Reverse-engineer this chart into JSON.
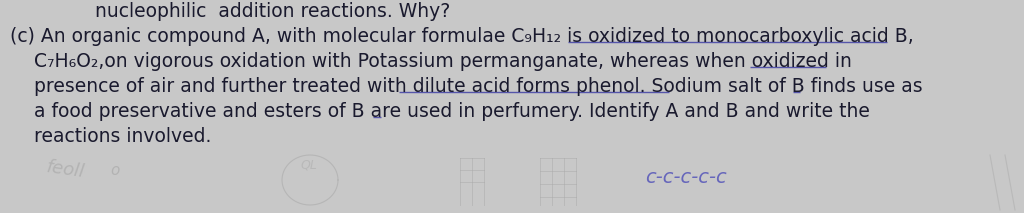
{
  "bg_color": "#c8c8c8",
  "text_color": "#1a1a2e",
  "underline_color": "#5555aa",
  "handwrite_color": "#6666bb",
  "handwrite_light": "#aaaaaa",
  "line0": "nucleophilic  addition reactions. Why?",
  "line1": "(c) An organic compound A, with molecular formulae C₉H₁₂ is oxidized to monocarboxylic acid B,",
  "line2": "    C₇H₆O₂,on vigorous oxidation with Potassium permanganate, whereas when oxidized in",
  "line3": "    presence of air and further treated with dilute acid forms phenol. Sodium salt of B finds use as",
  "line4": "    a food preservative and esters of B are used in perfumery. Identify A and B and write the",
  "line5": "    reactions involved.",
  "cccc_text": "c-c-c-c-c",
  "font_size": 13.5,
  "hand_font_size": 14
}
